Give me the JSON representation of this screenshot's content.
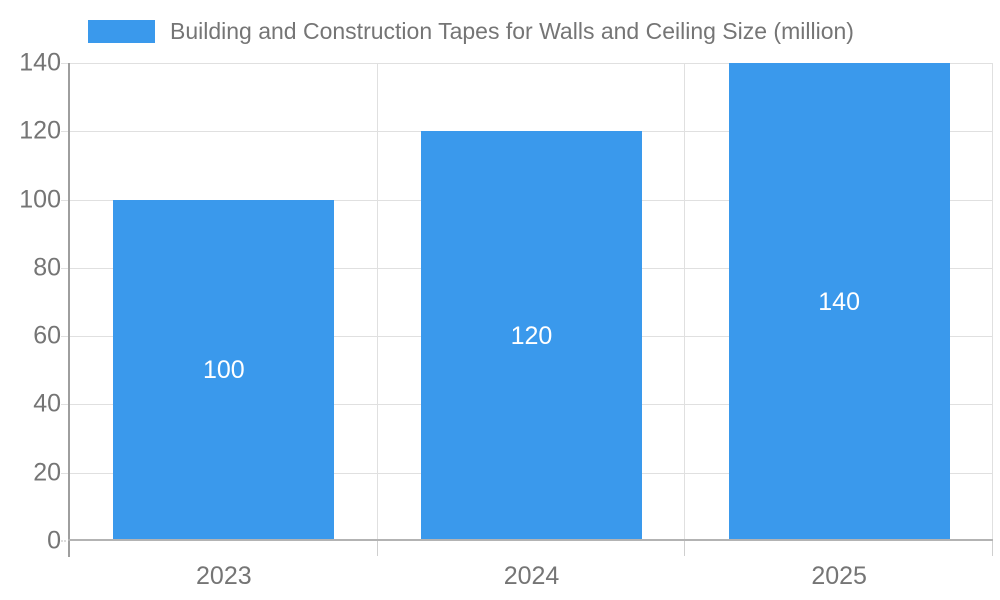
{
  "colors": {
    "bar": "#3a99ec",
    "grid": "#e0e0e0",
    "axis_y": "#9e9e9e",
    "axis_x": "#b3b3b3",
    "tick_text": "#757575",
    "data_label": "#ffffff",
    "background": "#ffffff"
  },
  "legend": {
    "label": "Building and Construction Tapes for Walls and Ceiling Size (million)"
  },
  "chart_data": {
    "type": "bar",
    "title": "Building and Construction Tapes for Walls and Ceiling Size (million)",
    "categories": [
      "2023",
      "2024",
      "2025"
    ],
    "values": [
      100,
      120,
      140
    ],
    "series": [
      {
        "name": "Building and Construction Tapes for Walls and Ceiling Size (million)",
        "values": [
          100,
          120,
          140
        ]
      }
    ],
    "xlabel": "",
    "ylabel": "",
    "ylim": [
      0,
      140
    ],
    "yticks": [
      0,
      20,
      40,
      60,
      80,
      100,
      120,
      140
    ],
    "grid": true,
    "legend_position": "top",
    "data_labels": true
  }
}
